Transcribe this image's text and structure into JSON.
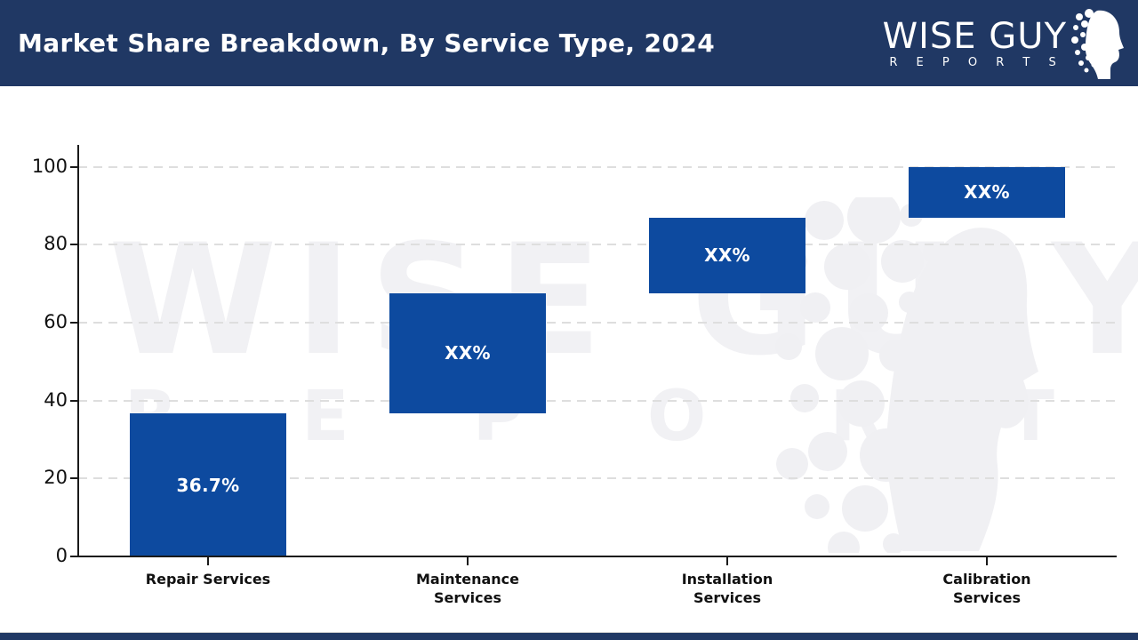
{
  "header": {
    "title": "Market Share Breakdown, By Service Type, 2024",
    "brand": {
      "line1": "WISE GUY",
      "line2": "R E P O R T S"
    }
  },
  "watermark": {
    "line1": "WISE GU·Y",
    "line2": "R E P O R T S"
  },
  "colors": {
    "header_bg": "#203864",
    "footer_bg": "#203864",
    "bar_color": "#0D4A9F",
    "grid_color": "#DEDEDE",
    "axis_color": "#1A1A1A",
    "watermark_color": "#F1F1F4",
    "bar_label_color": "#FFFFFF"
  },
  "chart_data": {
    "type": "bar",
    "subtype": "waterfall",
    "title": "Market Share Breakdown, By Service Type, 2024",
    "categories": [
      "Repair Services",
      "Maintenance Services",
      "Installation Services",
      "Calibration Services"
    ],
    "categories_wrapped": [
      [
        "Repair Services"
      ],
      [
        "Maintenance",
        "Services"
      ],
      [
        "Installation",
        "Services"
      ],
      [
        "Calibration",
        "Services"
      ]
    ],
    "bars": [
      {
        "category": "Repair Services",
        "start": 0,
        "end": 36.7,
        "value": 36.7,
        "label": "36.7%"
      },
      {
        "category": "Maintenance Services",
        "start": 36.7,
        "end": 67.6,
        "value": 30.9,
        "label": "XX%"
      },
      {
        "category": "Installation Services",
        "start": 67.6,
        "end": 87.0,
        "value": 19.4,
        "label": "XX%"
      },
      {
        "category": "Calibration Services",
        "start": 87.0,
        "end": 100.0,
        "value": 13.0,
        "label": "XX%"
      }
    ],
    "ylim": [
      0,
      100
    ],
    "yticks": [
      0,
      20,
      40,
      60,
      80,
      100
    ],
    "xlabel": "",
    "ylabel": "",
    "grid": "horizontal-dashed",
    "legend": "none"
  }
}
